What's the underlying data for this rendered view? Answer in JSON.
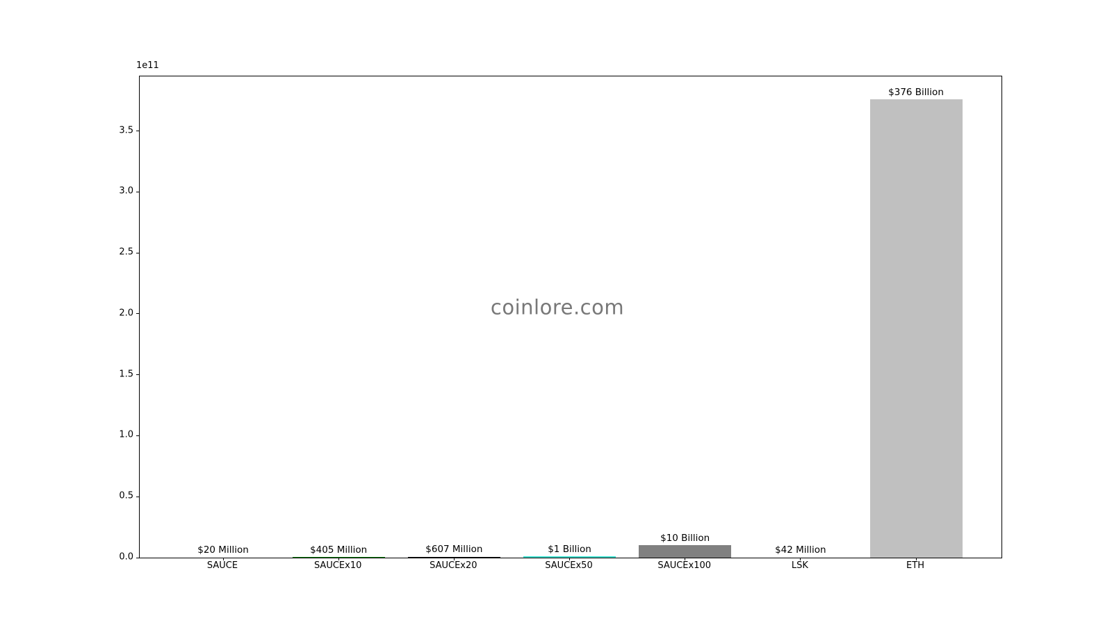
{
  "chart_data": {
    "type": "bar",
    "title": "",
    "xlabel": "",
    "ylabel": "",
    "categories": [
      "SAUCE",
      "SAUCEx10",
      "SAUCEx20",
      "SAUCEx50",
      "SAUCEx100",
      "LSK",
      "ETH"
    ],
    "values": [
      20000000,
      405000000,
      607000000,
      1000000000,
      10000000000,
      42000000,
      376000000000
    ],
    "bar_labels": [
      "$20 Million",
      "$405 Million",
      "$607 Million",
      "$1 Billion",
      "$10 Billion",
      "$42 Million",
      "$376 Billion"
    ],
    "bar_colors": [
      null,
      "#008000",
      "#000000",
      "#40E0D0",
      "#808080",
      null,
      "#c0c0c0"
    ],
    "y_tick_labels": [
      "0.0",
      "0.5",
      "1.0",
      "1.5",
      "2.0",
      "2.5",
      "3.0",
      "3.5"
    ],
    "y_tick_values": [
      0,
      50000000000,
      100000000000,
      150000000000,
      200000000000,
      250000000000,
      300000000000,
      350000000000
    ],
    "offset_label": "1e11",
    "ylim": [
      0,
      394800000000
    ],
    "grid": false,
    "legend": null,
    "watermark": "coinlore.com"
  },
  "colors": {
    "axis": "#000000",
    "watermark": "#787878",
    "background": "#ffffff",
    "fallback_bar": "#444444"
  }
}
